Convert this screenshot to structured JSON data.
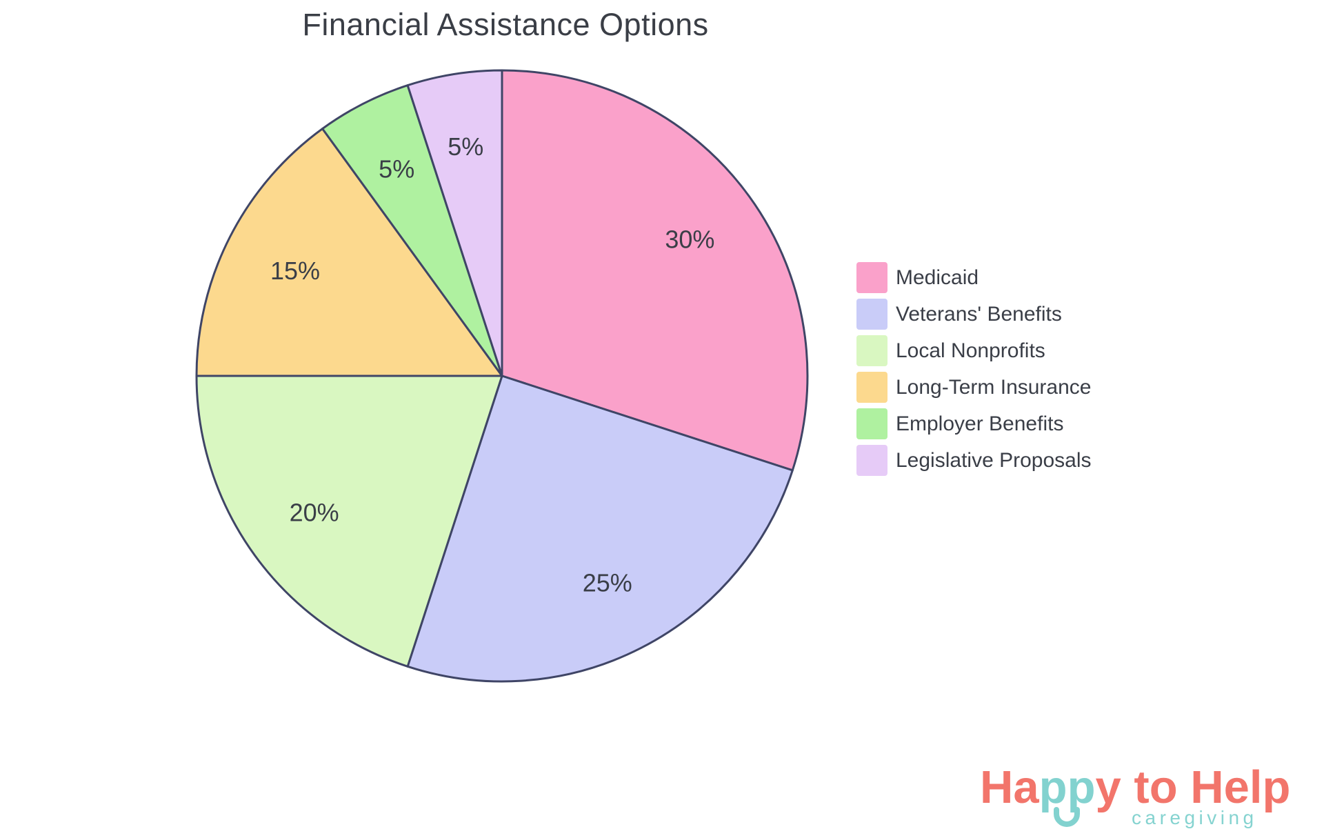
{
  "page": {
    "background": "#FFFFFF"
  },
  "chart_data": {
    "type": "pie",
    "title": "Financial Assistance Options",
    "title_color": "#3A3E46",
    "label_color": "#3A3E47",
    "border_color": "#3F4566",
    "start_angle": "12-oclock",
    "direction": "clockwise",
    "slice_label_format": "{value}%",
    "legend_position": "right",
    "slices": [
      {
        "label": "Medicaid",
        "value_pct": 30,
        "color": "#FAA1CA"
      },
      {
        "label": "Veterans' Benefits",
        "value_pct": 25,
        "color": "#C9CCF8"
      },
      {
        "label": "Local Nonprofits",
        "value_pct": 20,
        "color": "#D9F7C1"
      },
      {
        "label": "Long-Term Insurance",
        "value_pct": 15,
        "color": "#FCD98E"
      },
      {
        "label": "Employer Benefits",
        "value_pct": 5,
        "color": "#AFF1A0"
      },
      {
        "label": "Legislative Proposals",
        "value_pct": 5,
        "color": "#E6CBF7"
      }
    ]
  },
  "branding": {
    "wordmark": "Happy to Help",
    "wordmark_parts": [
      {
        "text": "Ha",
        "color": "#F2756B"
      },
      {
        "text": "pp",
        "color": "#82D2CF"
      },
      {
        "text": "y to Help",
        "color": "#F2756B"
      }
    ],
    "tagline": "caregiving",
    "tagline_color": "#85D3D0",
    "smile_icon_color": "#82D2CF"
  }
}
